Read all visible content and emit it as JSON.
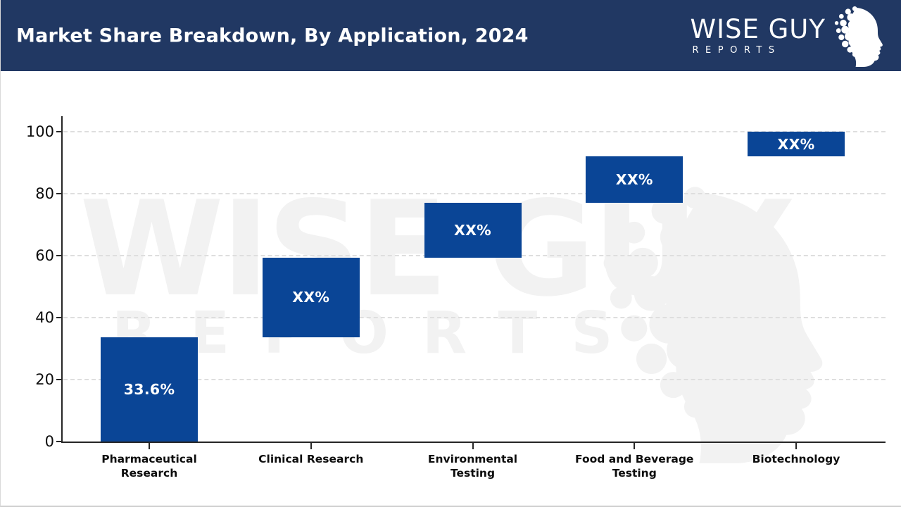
{
  "header": {
    "title": "Market Share Breakdown, By Application, 2024",
    "logo": {
      "line1": "WISE GUY",
      "line2": "REPORTS"
    }
  },
  "watermark": {
    "line1": "WISE GUY",
    "line2": "REPORTS"
  },
  "colors": {
    "header_bg": "#213863",
    "bar": "#0a4596",
    "grid": "#dedede",
    "axis": "#262626",
    "watermark": "#f2f2f2",
    "value_label": "#ffffff"
  },
  "chart_data": {
    "type": "bar",
    "subtype": "waterfall",
    "title": "Market Share Breakdown, By Application, 2024",
    "xlabel": "",
    "ylabel": "",
    "ylim": [
      0,
      100
    ],
    "yticks": [
      0,
      20,
      40,
      60,
      80,
      100
    ],
    "grid": "horizontal-dashed",
    "legend": "none",
    "categories": [
      "Pharmaceutical Research",
      "Clinical Research",
      "Environmental Testing",
      "Food and Beverage Testing",
      "Biotechnology"
    ],
    "category_lines": [
      [
        "Pharmaceutical",
        "Research"
      ],
      [
        "Clinical Research"
      ],
      [
        "Environmental",
        "Testing"
      ],
      [
        "Food and Beverage",
        "Testing"
      ],
      [
        "Biotechnology"
      ]
    ],
    "segments": [
      {
        "label": "33.6%",
        "start": 0,
        "end": 33.6
      },
      {
        "label": "XX%",
        "start": 33.6,
        "end": 59.4
      },
      {
        "label": "XX%",
        "start": 59.4,
        "end": 77.0
      },
      {
        "label": "XX%",
        "start": 77.0,
        "end": 92.0
      },
      {
        "label": "XX%",
        "start": 92.0,
        "end": 100.0
      }
    ]
  }
}
